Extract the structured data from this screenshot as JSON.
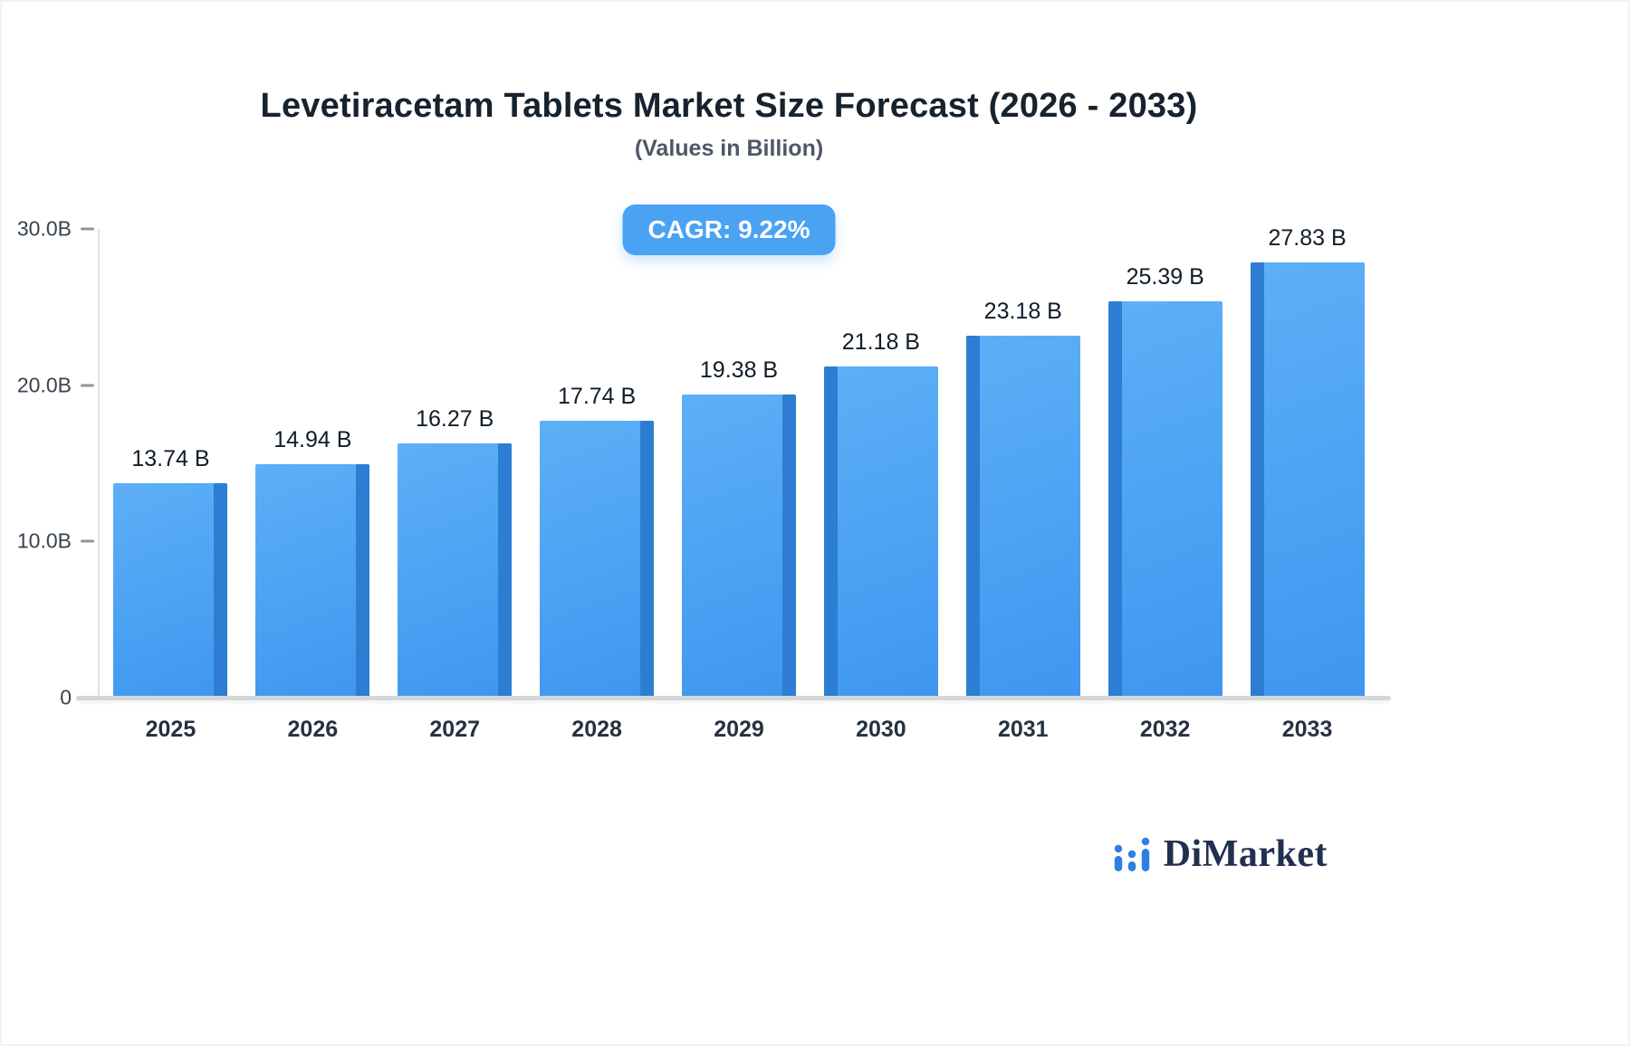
{
  "header": {
    "title": "Levetiracetam Tablets Market Size Forecast (2026 - 2033)",
    "subtitle": "(Values in Billion)",
    "cagr_badge": "CAGR: 9.22%"
  },
  "chart_data": {
    "type": "bar",
    "title": "Levetiracetam Tablets Market Size Forecast (2026 - 2033)",
    "subtitle": "(Values in Billion)",
    "cagr_percent": 9.22,
    "categories": [
      "2025",
      "2026",
      "2027",
      "2028",
      "2029",
      "2030",
      "2031",
      "2032",
      "2033"
    ],
    "values": [
      13.74,
      14.94,
      16.27,
      17.74,
      19.38,
      21.18,
      23.18,
      25.39,
      27.83
    ],
    "value_labels": [
      "13.74 B",
      "14.94 B",
      "16.27 B",
      "17.74 B",
      "19.38 B",
      "21.18 B",
      "23.18 B",
      "25.39 B",
      "27.83 B"
    ],
    "unit": "B",
    "xlabel": "",
    "ylabel": "",
    "ylim": [
      0,
      30
    ],
    "yticks": [
      {
        "value": 0,
        "label": "0"
      },
      {
        "value": 10,
        "label": "10.0B"
      },
      {
        "value": 20,
        "label": "20.0B"
      },
      {
        "value": 30,
        "label": "30.0B"
      }
    ],
    "grid": false,
    "legend": false,
    "bar_gradient": [
      "#5db0f6",
      "#3e96f0"
    ],
    "bar_side_color": "#2d7ed2"
  },
  "logo": {
    "text": "DiMarket",
    "icon": "bar-chart-icon",
    "icon_color": "#2e7fe2",
    "text_color": "#20304e"
  },
  "colors": {
    "badge_bg": "#4aa2f3",
    "badge_text": "#ffffff",
    "axis_line": "#d3d7dc",
    "title_text": "#17222f",
    "subtitle_text": "#4d5766"
  }
}
